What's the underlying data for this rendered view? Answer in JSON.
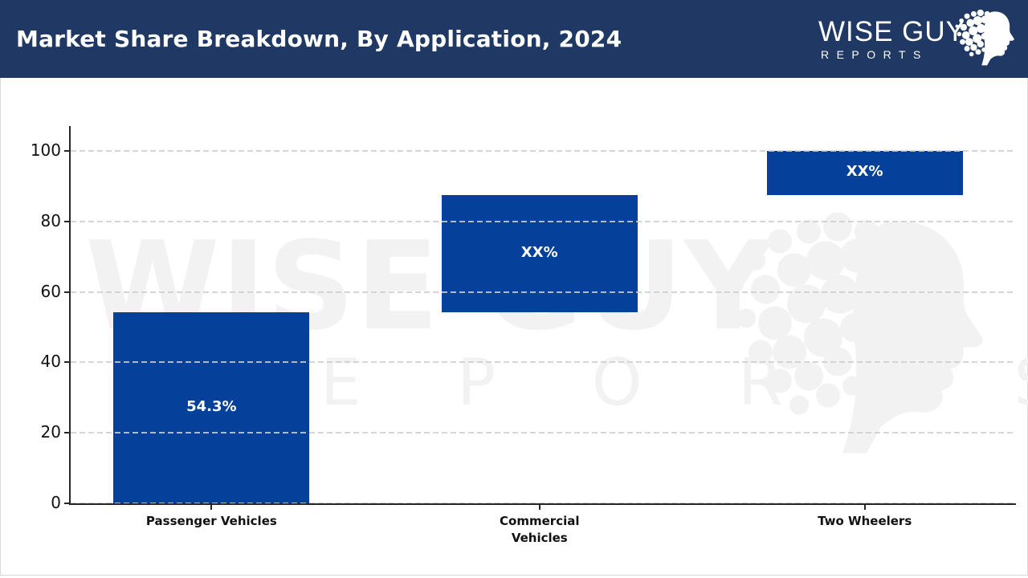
{
  "header": {
    "title": "Market Share Breakdown, By Application, 2024",
    "logo": {
      "line1": "WISE GUY",
      "line2": "REPORTS"
    }
  },
  "watermark": {
    "line1": "WISE GUY",
    "line2": "R E P O R T S"
  },
  "colors": {
    "header_bg": "#1f3864",
    "bar": "#05419b",
    "bar_label": "#ffffff",
    "grid": "#cecece",
    "axis": "#262626",
    "watermark": "#f2f2f2",
    "frame_border": "#d9d9d9"
  },
  "chart_data": {
    "type": "bar",
    "subtype": "waterfall",
    "title": "Market Share Breakdown, By Application, 2024",
    "categories": [
      "Passenger Vehicles",
      "Commercial\nVehicles",
      "Two Wheelers"
    ],
    "series": [
      {
        "name": "Market Share",
        "segments": [
          {
            "category": "Passenger Vehicles",
            "start": 0,
            "end": 54.3,
            "label": "54.3%"
          },
          {
            "category": "Commercial Vehicles",
            "start": 54.3,
            "end": 87.5,
            "label": "XX%"
          },
          {
            "category": "Two Wheelers",
            "start": 87.5,
            "end": 100,
            "label": "XX%"
          }
        ]
      }
    ],
    "xlabel": "",
    "ylabel": "",
    "ylim": [
      0,
      100
    ],
    "yticks": [
      0,
      20,
      40,
      60,
      80,
      100
    ],
    "grid": "horizontal-dashed",
    "legend": "none"
  }
}
